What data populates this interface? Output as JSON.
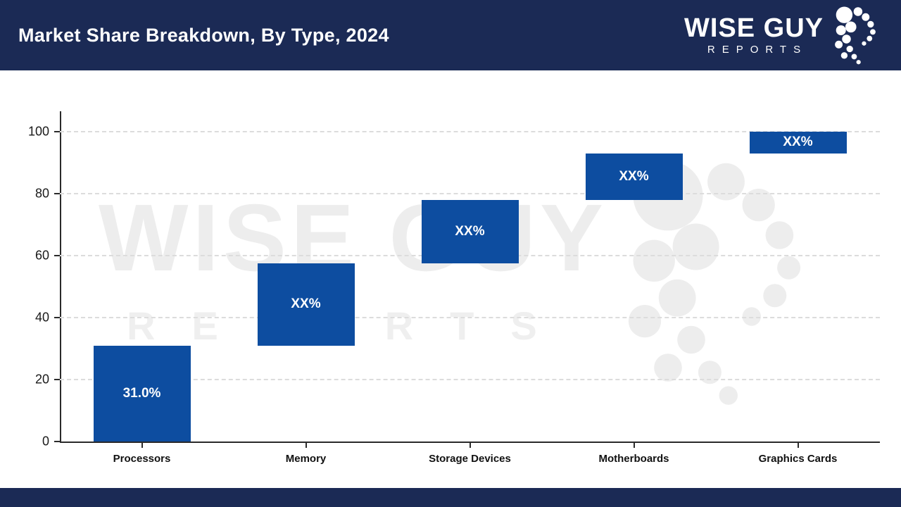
{
  "header": {
    "title": "Market Share Breakdown, By Type, 2024",
    "logo": {
      "line1": "WISE GUY",
      "line2": "REPORTS"
    }
  },
  "watermark": {
    "line1": "WISE GUY",
    "line2": "REPORTS"
  },
  "chart_data": {
    "type": "bar",
    "subtype": "waterfall",
    "title": "Market Share Breakdown, By Type, 2024",
    "categories": [
      "Processors",
      "Memory",
      "Storage Devices",
      "Motherboards",
      "Graphics Cards"
    ],
    "segments": [
      {
        "category": "Processors",
        "start": 0,
        "end": 31,
        "label": "31.0%"
      },
      {
        "category": "Memory",
        "start": 31,
        "end": 57.5,
        "label": "XX%"
      },
      {
        "category": "Storage Devices",
        "start": 57.5,
        "end": 78,
        "label": "XX%"
      },
      {
        "category": "Motherboards",
        "start": 78,
        "end": 93,
        "label": "XX%"
      },
      {
        "category": "Graphics Cards",
        "start": 93,
        "end": 100,
        "label": "XX%"
      }
    ],
    "yticks": [
      0,
      20,
      40,
      60,
      80,
      100
    ],
    "ylim": [
      0,
      105
    ],
    "xlabel": "",
    "ylabel": "",
    "grid": "horizontal-dashed",
    "legend": "none",
    "bar_color": "#0d4da0",
    "label_color": "#ffffff"
  },
  "colors": {
    "header_bg": "#1b2a55",
    "footer_bg": "#1b2a55",
    "bar": "#0d4da0",
    "watermark": "#ededed",
    "grid": "#dcdcdc",
    "axis": "#2a2a2a"
  }
}
